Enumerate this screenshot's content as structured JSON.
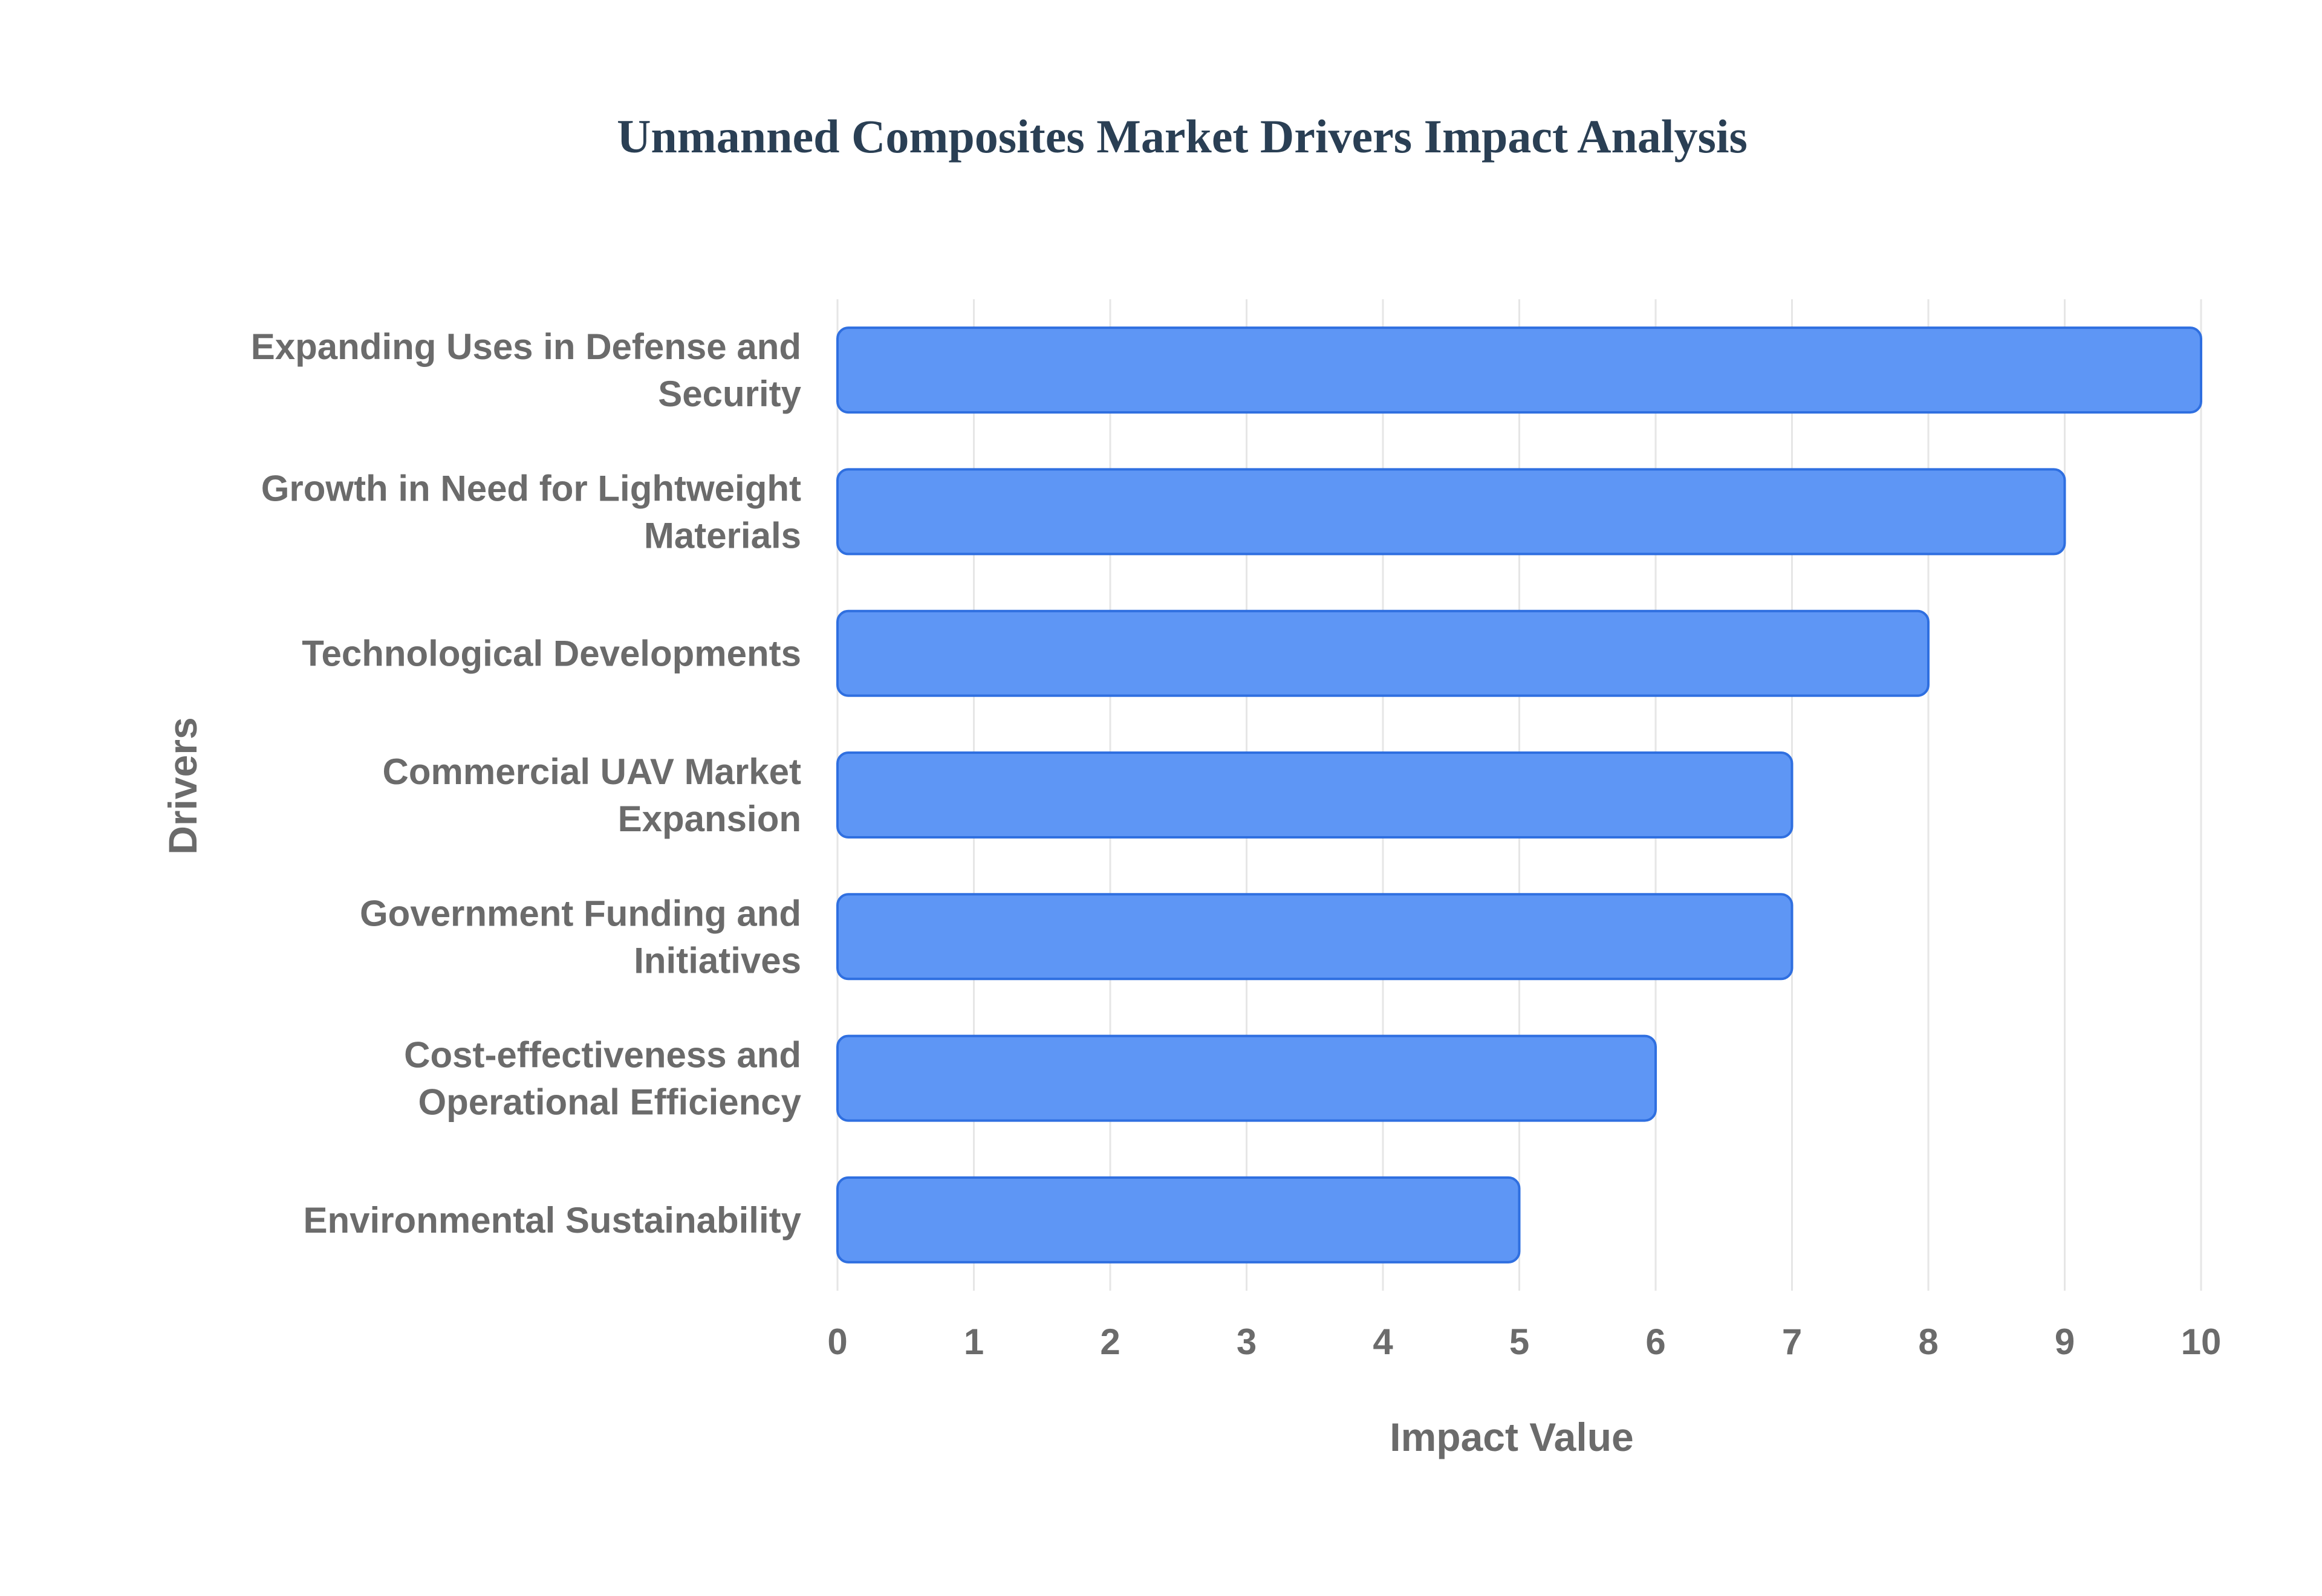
{
  "chart_data": {
    "type": "bar",
    "orientation": "horizontal",
    "title": "Unmanned Composites Market Drivers Impact Analysis",
    "xlabel": "Impact Value",
    "ylabel": "Drivers",
    "categories": [
      [
        "Expanding Uses in Defense and",
        "Security"
      ],
      [
        "Growth in Need for Lightweight",
        "Materials"
      ],
      [
        "Technological Developments"
      ],
      [
        "Commercial UAV Market",
        "Expansion"
      ],
      [
        "Government Funding and",
        "Initiatives"
      ],
      [
        "Cost-effectiveness and",
        "Operational Efficiency"
      ],
      [
        "Environmental Sustainability"
      ]
    ],
    "values": [
      10,
      9,
      8,
      7,
      7,
      6,
      5
    ],
    "xlim": [
      0,
      10
    ],
    "xticks": [
      0,
      1,
      2,
      3,
      4,
      5,
      6,
      7,
      8,
      9,
      10
    ],
    "grid": true,
    "legend": "none"
  },
  "colors": {
    "title": "#2a3f54",
    "bar_fill": "#5e96f5",
    "bar_stroke": "#2f6fe0",
    "grid": "#e6e6e6",
    "axis_text": "#6b6b6b"
  }
}
